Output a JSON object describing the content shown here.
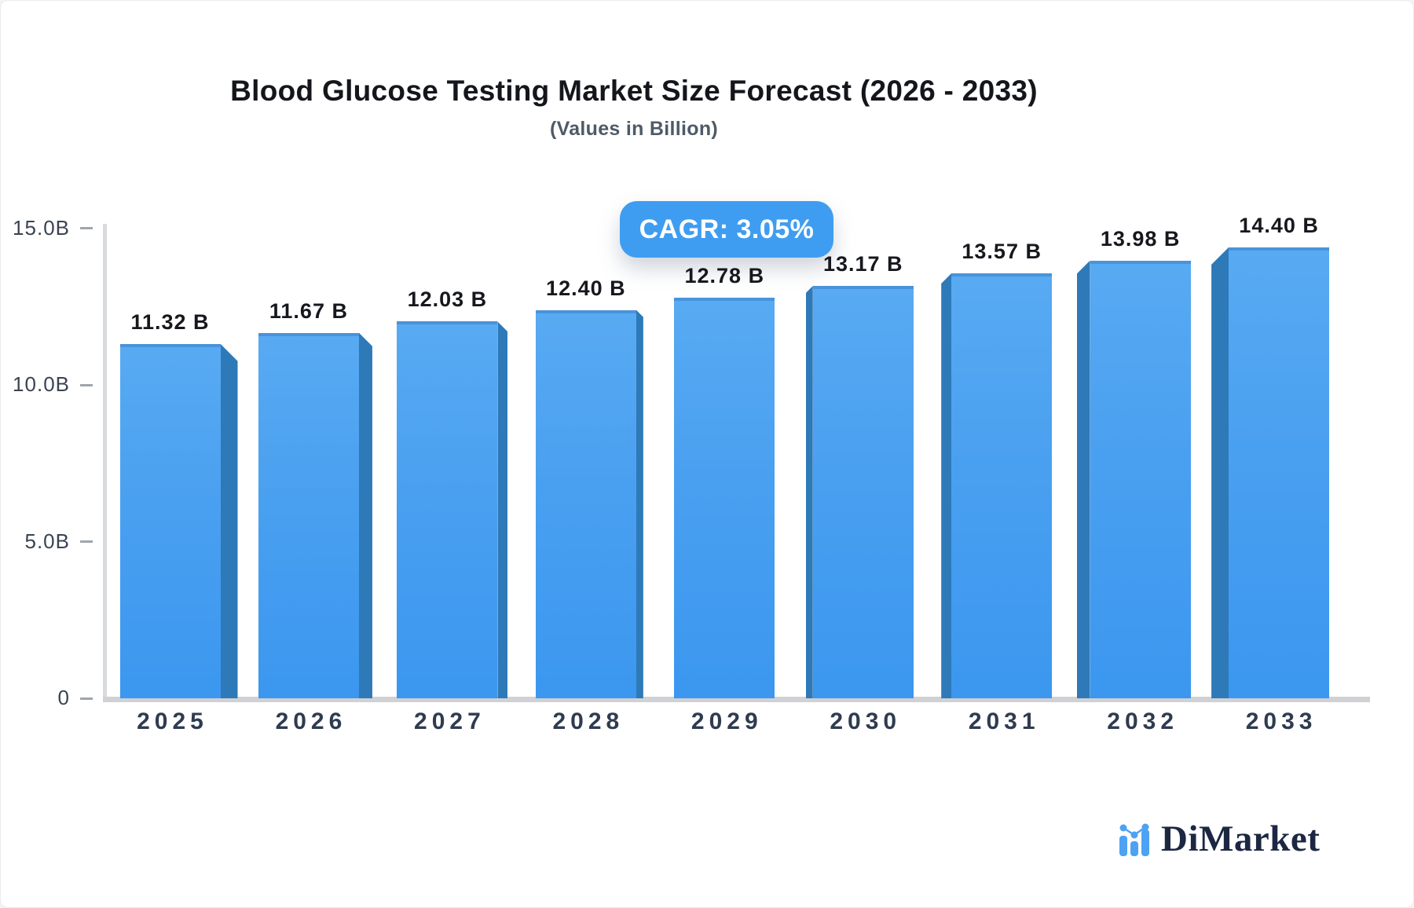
{
  "header": {
    "title": "Blood Glucose Testing Market Size Forecast (2026 - 2033)",
    "subtitle": "(Values in Billion)"
  },
  "badge": {
    "label": "CAGR: 3.05%"
  },
  "footer": {
    "brand_name": "DiMarket"
  },
  "chart_data": {
    "type": "bar",
    "title": "Blood Glucose Testing Market Size Forecast (2026 - 2033)",
    "subtitle": "(Values in Billion)",
    "cagr_label": "CAGR: 3.05%",
    "categories": [
      "2025",
      "2026",
      "2027",
      "2028",
      "2029",
      "2030",
      "2031",
      "2032",
      "2033"
    ],
    "values": [
      11.32,
      11.67,
      12.03,
      12.4,
      12.78,
      13.17,
      13.57,
      13.98,
      14.4
    ],
    "bar_labels": [
      "11.32 B",
      "11.67 B",
      "12.03 B",
      "12.40 B",
      "12.78 B",
      "13.17 B",
      "13.57 B",
      "13.98 B",
      "14.40 B"
    ],
    "value_suffix": " B",
    "xlabel": "",
    "ylabel": "",
    "ylim": [
      0,
      15
    ],
    "grid": false,
    "legend": null,
    "y_axis": {
      "ticks": [
        {
          "value": 15,
          "label": "15.0B"
        },
        {
          "value": 10,
          "label": "10.0B"
        },
        {
          "value": 5,
          "label": "5.0B"
        },
        {
          "value": 0,
          "label": "0"
        }
      ]
    }
  },
  "colors": {
    "page_bg": "#ffffff",
    "title_text": "#14161c",
    "subtitle_text": "#4e5a68",
    "badge_bg": "#3f9df1",
    "badge_text": "#ffffff",
    "bar_face_top": "#58aaf2",
    "bar_face_mid": "#4aa0f0",
    "bar_face_bottom": "#3b97ef",
    "bar_side": "#2e79b8",
    "axis_line": "#d8dade",
    "baseline": "#cfd1d5",
    "tick_dash": "#9fa5ad",
    "tick_text": "#3a4352",
    "value_text": "#16181d",
    "year_text": "#2f3b50",
    "brand_icon": "#4da2f3",
    "brand_text": "#1c2742"
  }
}
